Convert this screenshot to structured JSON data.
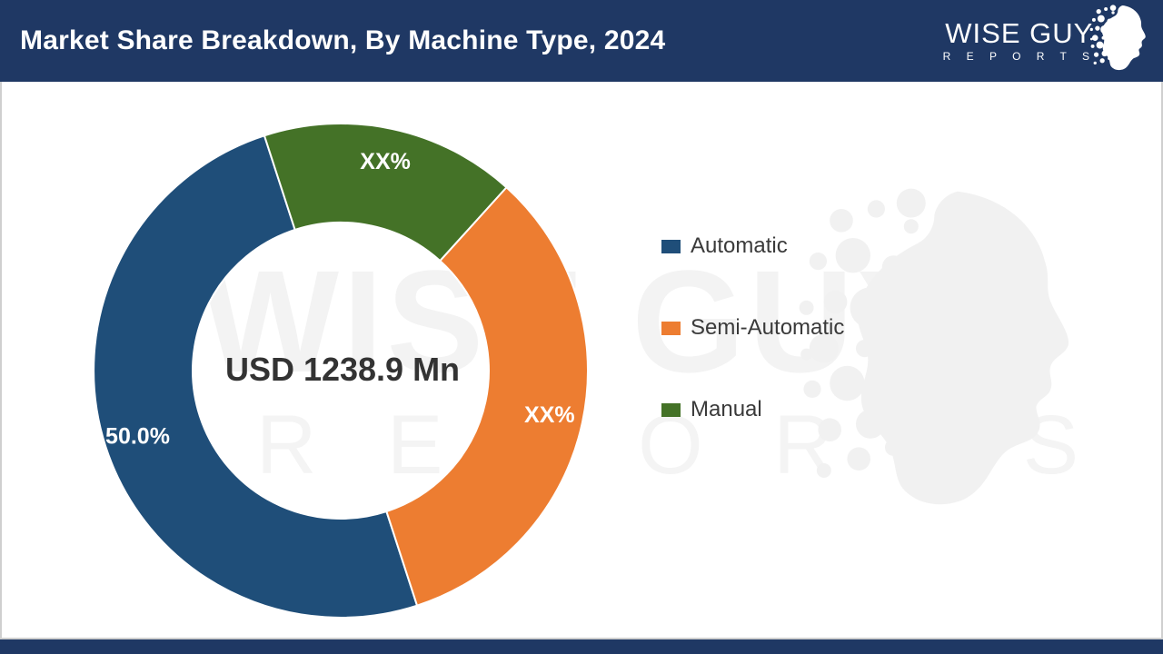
{
  "header": {
    "title": "Market Share Breakdown, By Machine Type, 2024",
    "logo": {
      "line1": "WISE GUY",
      "line2": "R E P O R T S"
    }
  },
  "watermark": {
    "line1": "WISE GUY",
    "line2": "R E P O R T S"
  },
  "chart_data": {
    "type": "pie",
    "subtype": "donut",
    "title": "Market Share Breakdown, By Machine Type, 2024",
    "center_label": "USD 1238.9 Mn",
    "start_angle_deg": 108,
    "direction": "counterclockwise",
    "legend_position": "right",
    "slices": [
      {
        "name": "Automatic",
        "value_pct": 50.0,
        "display_label": "50.0%",
        "color": "#1f4e79"
      },
      {
        "name": "Semi-Automatic",
        "value_pct": 33.3,
        "display_label": "XX%",
        "color": "#ed7d31"
      },
      {
        "name": "Manual",
        "value_pct": 16.7,
        "display_label": "XX%",
        "color": "#447227"
      }
    ]
  },
  "colors": {
    "header_bg": "#1f3864",
    "footer_bg": "#1f3864",
    "page_border": "#cfcfcf",
    "center_text": "#333333",
    "legend_text": "#3a3a3a",
    "slice_label_text": "#ffffff",
    "watermark": "#f3f3f3",
    "slice_divider": "#ffffff"
  }
}
